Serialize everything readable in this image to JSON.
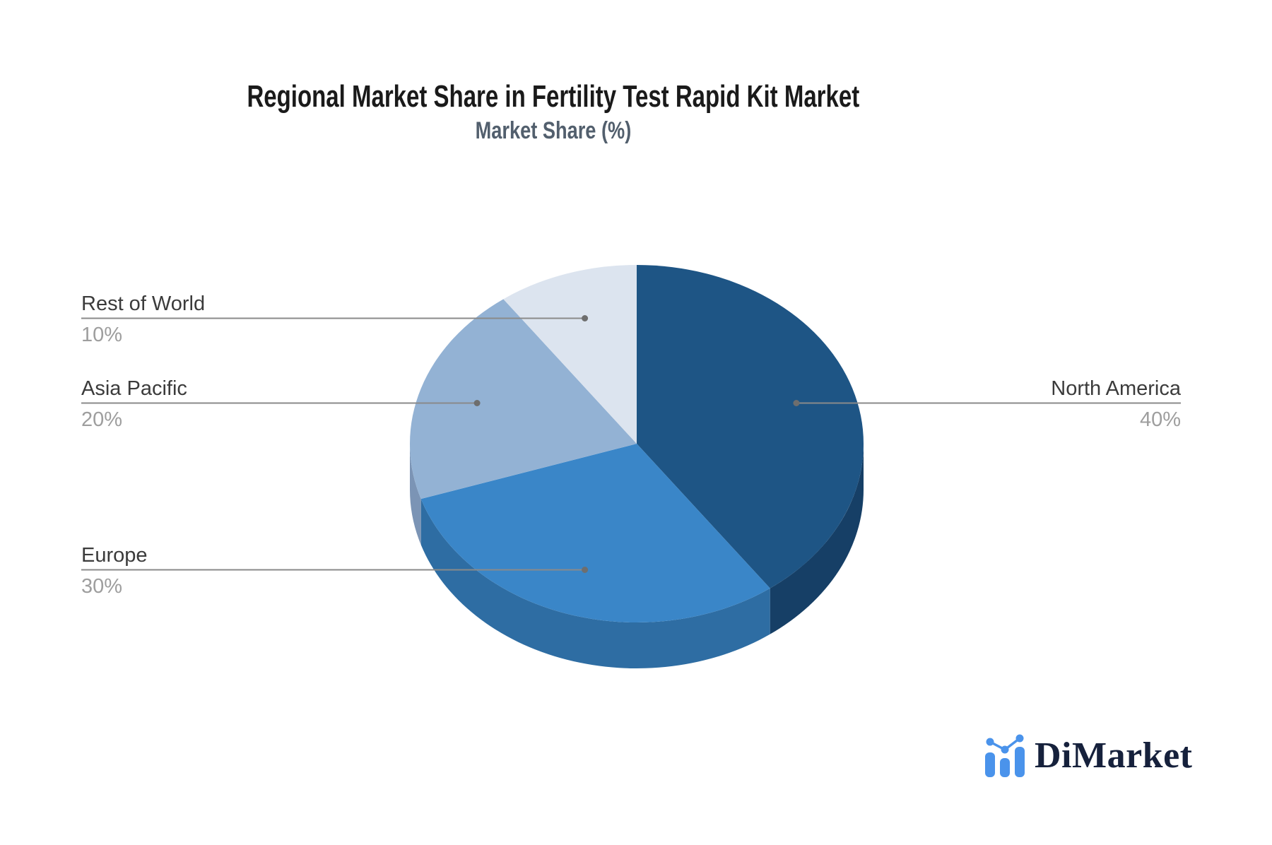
{
  "title": "Regional Market Share in Fertility Test Rapid Kit Market",
  "subtitle": "Market Share (%)",
  "logo": {
    "text": "DiMarket"
  },
  "chart_data": {
    "type": "pie",
    "title": "Regional Market Share in Fertility Test Rapid Kit Market",
    "subtitle": "Market Share (%)",
    "unit": "percent",
    "start_angle_deg": 0,
    "direction": "clockwise",
    "effect": "3d-depth",
    "legend_position": "leader-lines",
    "slices": [
      {
        "label": "North America",
        "value": 40,
        "pct_label": "40%",
        "color": "#1E5585",
        "depth_color": "#163F66",
        "label_side": "right"
      },
      {
        "label": "Europe",
        "value": 30,
        "pct_label": "30%",
        "color": "#3A86C8",
        "depth_color": "#2E6DA3",
        "label_side": "left"
      },
      {
        "label": "Asia Pacific",
        "value": 20,
        "pct_label": "20%",
        "color": "#93B2D4",
        "depth_color": "#7B94B5",
        "label_side": "left"
      },
      {
        "label": "Rest of World",
        "value": 10,
        "pct_label": "10%",
        "color": "#DCE4EF",
        "depth_color": "#B9C5D8",
        "label_side": "left"
      }
    ],
    "leader_line_color": "#8a8a8a",
    "leader_dot_color": "#6e6e6e",
    "label_color": "#3b3b3b",
    "value_color": "#9e9e9e"
  }
}
